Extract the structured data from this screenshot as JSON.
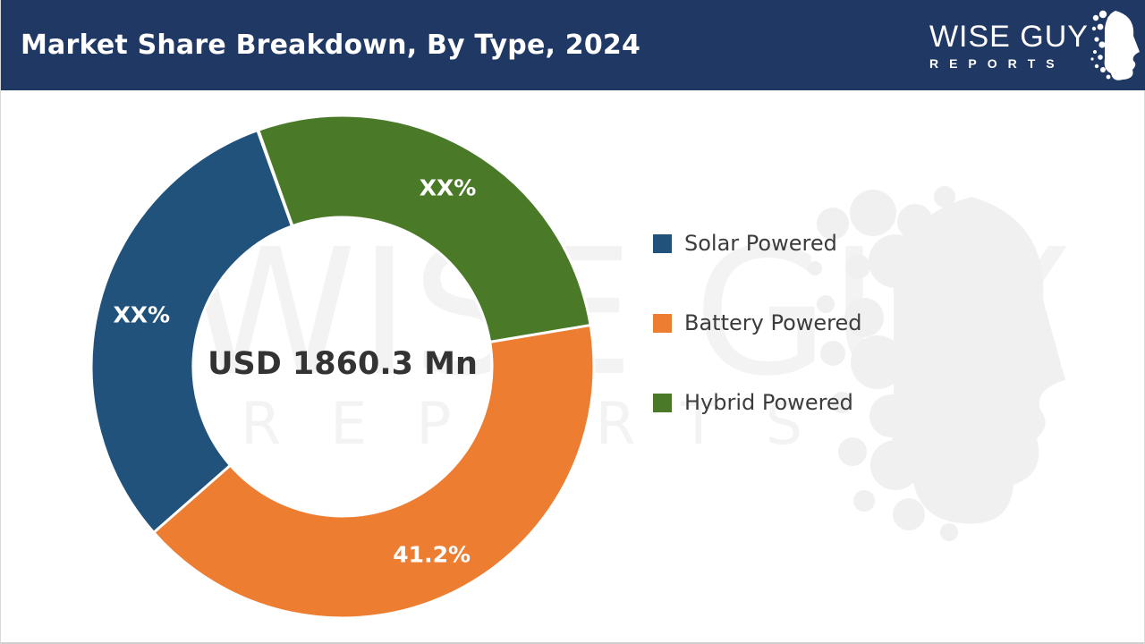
{
  "header": {
    "title": "Market Share Breakdown, By Type, 2024",
    "logo": {
      "line1": "WISE GUY",
      "line2": "REPORTS"
    }
  },
  "watermark": {
    "line1": "WISE GUY",
    "line2": "REPORTS"
  },
  "colors": {
    "header_bg": "#203864",
    "title_text": "#ffffff",
    "legend_text": "#3c3c3c",
    "center_text": "#333333",
    "watermark": "#f3f3f3",
    "border": "#d9d9d9"
  },
  "chart_data": {
    "type": "pie",
    "subtype": "donut",
    "title": "Market Share Breakdown, By Type, 2024",
    "center_label": "USD 1860.3 Mn",
    "legend_position": "right",
    "slices": [
      {
        "name": "Solar Powered",
        "label": "XX%",
        "value_pct": 31.0,
        "start_deg": 228.6,
        "color": "#21527B"
      },
      {
        "name": "Battery Powered",
        "label": "41.2%",
        "value_pct": 41.2,
        "start_deg": 80.4,
        "color": "#ED7D31"
      },
      {
        "name": "Hybrid Powered",
        "label": "XX%",
        "value_pct": 27.8,
        "start_deg": 340.4,
        "color": "#4A7A28"
      }
    ]
  }
}
